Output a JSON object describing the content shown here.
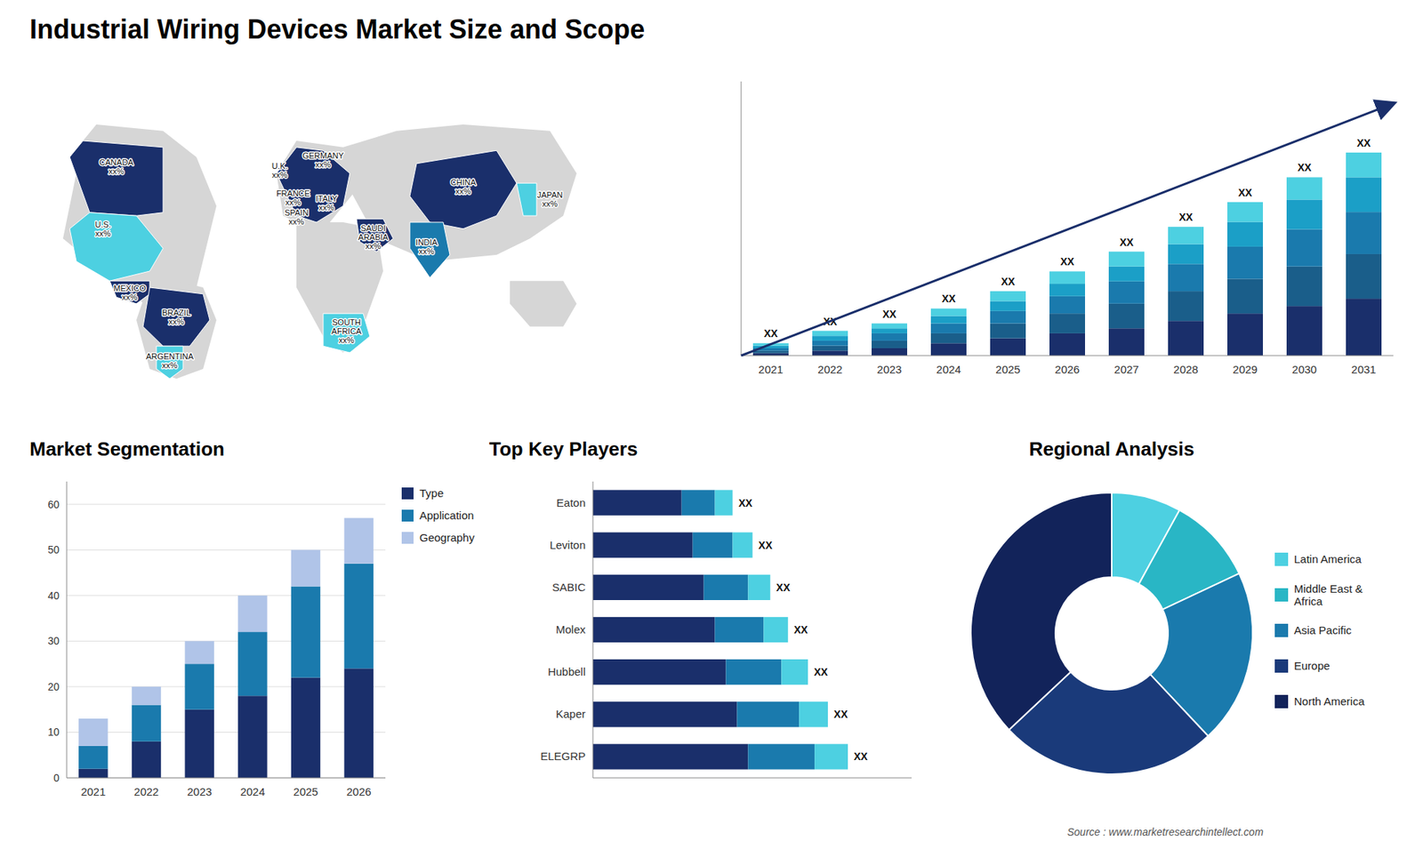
{
  "chart_data": [
    {
      "type": "map",
      "title": "Industrial Wiring Devices Market Size and Scope",
      "annotations": [
        "U.S.\nxx%",
        "CANADA\nxx%",
        "MEXICO\nxx%",
        "BRAZIL\nxx%",
        "ARGENTINA\nxx%",
        "U.K.\nxx%",
        "FRANCE\nxx%",
        "GERMANY\nxx%",
        "SPAIN\nxx%",
        "ITALY\nxx%",
        "SAUDI\nARABIA\nxx%",
        "SOUTH\nAFRICA\nxx%",
        "CHINA\nxx%",
        "INDIA\nxx%",
        "JAPAN\nxx%"
      ],
      "colors": [
        "#4dd0e1",
        "#1a2f6b",
        "#1a2f6b",
        "#1a2f6b",
        "#4dd0e1",
        "#1a2f6b",
        "#1a2f6b",
        "#1a2f6b",
        "#1a2f6b",
        "#1a2f6b",
        "#1a2f6b",
        "#4dd0e1",
        "#1a2f6b",
        "#1a7aad",
        "#4dd0e1"
      ]
    },
    {
      "type": "bar",
      "stacked": true,
      "categories": [
        2021,
        2022,
        2023,
        2024,
        2025,
        2026,
        2027,
        2028,
        2029,
        2030,
        2031
      ],
      "series": [
        {
          "color": "#1a2f6b",
          "values": [
            1,
            2,
            3,
            5,
            7,
            9,
            11,
            14,
            17,
            20,
            23
          ]
        },
        {
          "color": "#1a5e8a",
          "values": [
            1,
            2,
            3,
            4,
            6,
            8,
            10,
            12,
            14,
            16,
            18
          ]
        },
        {
          "color": "#1a7aad",
          "values": [
            1,
            2,
            3,
            4,
            5,
            7,
            9,
            11,
            13,
            15,
            17
          ]
        },
        {
          "color": "#1b9fc7",
          "values": [
            1,
            2,
            2,
            3,
            4,
            5,
            6,
            8,
            10,
            12,
            14
          ]
        },
        {
          "color": "#4dd0e1",
          "values": [
            1,
            2,
            2,
            3,
            4,
            5,
            6,
            7,
            8,
            9,
            10
          ]
        }
      ],
      "ylim": [
        0,
        110.7
      ],
      "tick_labels": "x",
      "annotations": [
        "XX",
        "XX",
        "XX",
        "XX",
        "XX",
        "XX",
        "XX",
        "XX",
        "XX",
        "XX",
        "XX"
      ]
    },
    {
      "type": "bar",
      "stacked": true,
      "title": "Market Segmentation",
      "categories": [
        2021,
        2022,
        2023,
        2024,
        2025,
        2026
      ],
      "series": [
        {
          "name": "Type",
          "color": "#1a2f6b",
          "values": [
            2,
            8,
            15,
            18,
            22,
            24
          ]
        },
        {
          "name": "Application",
          "color": "#1a7aad",
          "values": [
            5,
            8,
            10,
            14,
            20,
            23
          ]
        },
        {
          "name": "Geography",
          "color": "#b0c4e8",
          "values": [
            6,
            4,
            5,
            8,
            8,
            10
          ]
        }
      ],
      "ylim": [
        0,
        65
      ],
      "yticks": [
        0,
        10,
        20,
        30,
        40,
        50,
        60
      ],
      "grid": true,
      "legend": "right"
    },
    {
      "type": "bar",
      "orientation": "horizontal",
      "stacked": true,
      "title": "Top Key Players",
      "categories": [
        "ELEGRP",
        "Kaper",
        "Hubbell",
        "Molex",
        "SABIC",
        "Leviton",
        "Eaton"
      ],
      "series": [
        {
          "color": "#1a2f6b",
          "values": [
            7,
            6.5,
            6,
            5.5,
            5,
            4.5,
            4
          ]
        },
        {
          "color": "#1a7aad",
          "values": [
            3,
            2.8,
            2.5,
            2.2,
            2,
            1.8,
            1.5
          ]
        },
        {
          "color": "#4dd0e1",
          "values": [
            1.5,
            1.3,
            1.2,
            1.1,
            1.0,
            0.9,
            0.8
          ]
        }
      ],
      "xlim": [
        0,
        14.375
      ],
      "tick_labels": "y",
      "annotations": [
        "XX",
        "XX",
        "XX",
        "XX",
        "XX",
        "XX",
        "XX"
      ]
    },
    {
      "type": "pie",
      "title": "Regional Analysis",
      "categories": [
        "Latin America",
        "Middle East &\nAfrica",
        "Asia Pacific",
        "Europe",
        "North America"
      ],
      "values": [
        8,
        10,
        20,
        25,
        37
      ],
      "colors": [
        "#4dd0e1",
        "#29b6c5",
        "#1a7aad",
        "#1a3a7a",
        "#12235a"
      ],
      "legend": "right",
      "annotations": [
        "Source : www.marketresearchintellect.com"
      ]
    }
  ]
}
